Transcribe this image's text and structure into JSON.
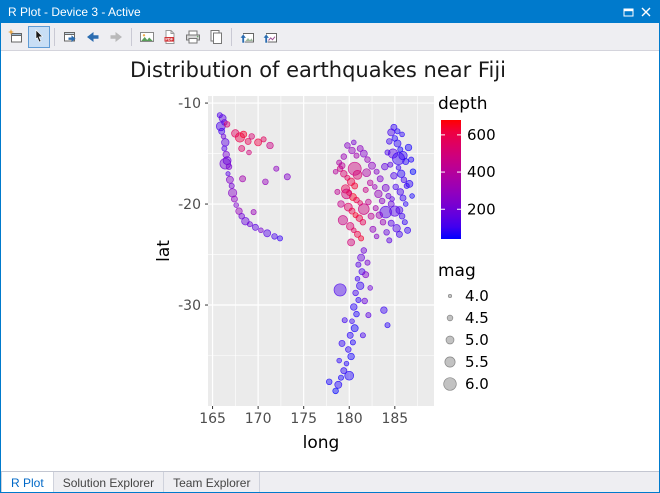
{
  "window": {
    "title": "R Plot - Device 3 - Active",
    "controls": [
      {
        "name": "window-position-icon"
      },
      {
        "name": "close-icon"
      }
    ]
  },
  "toolbar": {
    "buttons": [
      {
        "name": "new-plot-window-icon"
      },
      {
        "name": "pointer-tool-icon",
        "active": true
      },
      {
        "name": "export-plot-icon"
      },
      {
        "name": "history-previous-icon"
      },
      {
        "name": "history-next-icon",
        "disabled": true
      },
      {
        "name": "save-image-icon"
      },
      {
        "name": "save-pdf-icon"
      },
      {
        "name": "print-icon"
      },
      {
        "name": "copy-icon"
      },
      {
        "name": "copy-bitmap-icon"
      },
      {
        "name": "copy-metafile-icon"
      }
    ]
  },
  "tabs": [
    {
      "label": "R Plot",
      "active": true
    },
    {
      "label": "Solution Explorer",
      "active": false
    },
    {
      "label": "Team Explorer",
      "active": false
    }
  ],
  "chart_data": {
    "type": "scatter",
    "title": "Distribution of earthquakes near Fiji",
    "xlabel": "long",
    "ylabel": "lat",
    "x_ticks": [
      165,
      170,
      175,
      180,
      185
    ],
    "y_ticks": [
      -10,
      -20,
      -30
    ],
    "x_minor": [
      167.5,
      172.5,
      177.5,
      182.5,
      187.5
    ],
    "y_minor": [
      -15,
      -25,
      -35
    ],
    "xlim": [
      164.5,
      189.3
    ],
    "ylim": [
      -40.0,
      -9.3
    ],
    "panel_bg": "#EBEBEB",
    "grid_color": "#FFFFFF",
    "color_legend": {
      "title": "depth",
      "ticks": [
        600,
        400,
        200
      ],
      "domain": [
        40,
        680
      ],
      "low": "#0000FF",
      "high": "#FF0000"
    },
    "size_legend": {
      "title": "mag",
      "values": [
        4.0,
        4.5,
        5.0,
        5.5,
        6.0
      ],
      "labels": [
        "4.0",
        "4.5",
        "5.0",
        "5.5",
        "6.0"
      ]
    },
    "points": [
      [
        165.8,
        -11.2,
        130,
        4.4
      ],
      [
        166.1,
        -11.5,
        150,
        4.8
      ],
      [
        166.3,
        -11.9,
        180,
        4.5
      ],
      [
        165.9,
        -12.3,
        120,
        5.2
      ],
      [
        166.6,
        -12.1,
        520,
        4.5
      ],
      [
        166.0,
        -12.8,
        110,
        4.6
      ],
      [
        166.2,
        -13.3,
        200,
        4.3
      ],
      [
        166.4,
        -13.9,
        160,
        4.9
      ],
      [
        166.3,
        -14.5,
        140,
        4.4
      ],
      [
        166.5,
        -15.1,
        220,
        4.7
      ],
      [
        166.6,
        -15.7,
        190,
        5.0
      ],
      [
        166.4,
        -16.0,
        200,
        5.6
      ],
      [
        166.8,
        -16.3,
        230,
        4.5
      ],
      [
        166.7,
        -17.0,
        150,
        4.2
      ],
      [
        166.9,
        -17.6,
        250,
        4.8
      ],
      [
        167.1,
        -18.2,
        210,
        4.4
      ],
      [
        167.2,
        -18.9,
        260,
        5.1
      ],
      [
        167.4,
        -19.5,
        280,
        4.6
      ],
      [
        167.6,
        -20.1,
        240,
        4.3
      ],
      [
        167.9,
        -20.7,
        300,
        4.7
      ],
      [
        168.2,
        -21.2,
        200,
        4.5
      ],
      [
        168.6,
        -21.7,
        180,
        4.9
      ],
      [
        169.1,
        -22.0,
        190,
        4.4
      ],
      [
        169.7,
        -22.3,
        160,
        4.6
      ],
      [
        170.3,
        -22.6,
        220,
        4.3
      ],
      [
        171.0,
        -22.9,
        140,
        4.8
      ],
      [
        171.8,
        -23.2,
        120,
        4.5
      ],
      [
        172.4,
        -23.4,
        90,
        4.4
      ],
      [
        168.3,
        -17.5,
        340,
        4.6
      ],
      [
        169.5,
        -20.8,
        310,
        4.4
      ],
      [
        167.5,
        -13.0,
        560,
        4.9
      ],
      [
        168.0,
        -13.4,
        600,
        5.3
      ],
      [
        168.4,
        -13.1,
        640,
        4.7
      ],
      [
        168.9,
        -13.8,
        580,
        4.6
      ],
      [
        169.3,
        -13.3,
        520,
        4.5
      ],
      [
        170.0,
        -13.9,
        610,
        4.8
      ],
      [
        170.6,
        -13.6,
        560,
        4.4
      ],
      [
        168.2,
        -14.5,
        540,
        4.6
      ],
      [
        169.0,
        -14.9,
        500,
        4.3
      ],
      [
        171.3,
        -14.2,
        470,
        4.7
      ],
      [
        170.8,
        -17.8,
        300,
        4.5
      ],
      [
        172.0,
        -16.5,
        280,
        4.4
      ],
      [
        173.2,
        -17.3,
        250,
        4.6
      ],
      [
        179.0,
        -16.5,
        480,
        4.5
      ],
      [
        179.4,
        -17.0,
        520,
        4.7
      ],
      [
        179.8,
        -17.4,
        560,
        4.4
      ],
      [
        180.2,
        -17.8,
        600,
        4.9
      ],
      [
        180.6,
        -18.2,
        640,
        4.6
      ],
      [
        179.6,
        -18.5,
        580,
        5.1
      ],
      [
        180.0,
        -18.9,
        620,
        4.4
      ],
      [
        180.4,
        -19.3,
        660,
        4.8
      ],
      [
        180.8,
        -19.6,
        600,
        4.5
      ],
      [
        181.2,
        -19.9,
        560,
        4.3
      ],
      [
        179.9,
        -20.3,
        540,
        5.0
      ],
      [
        180.3,
        -20.7,
        600,
        4.6
      ],
      [
        180.7,
        -21.1,
        650,
        4.4
      ],
      [
        181.1,
        -21.4,
        610,
        4.7
      ],
      [
        181.5,
        -21.8,
        570,
        4.5
      ],
      [
        180.1,
        -22.2,
        520,
        4.9
      ],
      [
        180.5,
        -22.6,
        560,
        4.3
      ],
      [
        180.9,
        -23.0,
        600,
        4.6
      ],
      [
        181.3,
        -23.4,
        640,
        4.4
      ],
      [
        180.2,
        -23.8,
        500,
        4.8
      ],
      [
        179.7,
        -19.0,
        500,
        5.4
      ],
      [
        181.6,
        -20.5,
        480,
        5.6
      ],
      [
        180.9,
        -17.1,
        530,
        5.2
      ],
      [
        181.8,
        -18.6,
        460,
        4.4
      ],
      [
        182.1,
        -19.8,
        440,
        4.5
      ],
      [
        182.4,
        -21.2,
        420,
        4.6
      ],
      [
        179.3,
        -21.6,
        470,
        5.3
      ],
      [
        179.1,
        -20.0,
        450,
        4.7
      ],
      [
        178.7,
        -18.8,
        430,
        4.4
      ],
      [
        180.6,
        -16.5,
        480,
        6.1
      ],
      [
        182.0,
        -15.6,
        300,
        4.5
      ],
      [
        182.5,
        -16.2,
        280,
        4.8
      ],
      [
        183.0,
        -16.8,
        260,
        4.4
      ],
      [
        183.4,
        -17.5,
        240,
        4.6
      ],
      [
        182.8,
        -18.3,
        320,
        4.3
      ],
      [
        183.2,
        -19.0,
        300,
        4.9
      ],
      [
        183.6,
        -19.7,
        270,
        4.5
      ],
      [
        182.9,
        -20.4,
        350,
        4.4
      ],
      [
        183.3,
        -21.1,
        330,
        4.7
      ],
      [
        183.7,
        -21.8,
        310,
        4.5
      ],
      [
        182.6,
        -22.5,
        290,
        4.6
      ],
      [
        183.0,
        -23.2,
        260,
        4.3
      ],
      [
        184.0,
        -18.4,
        220,
        4.8
      ],
      [
        184.3,
        -19.2,
        200,
        4.4
      ],
      [
        184.6,
        -20.0,
        180,
        4.6
      ],
      [
        181.9,
        -16.9,
        380,
        5.0
      ],
      [
        182.3,
        -17.9,
        400,
        4.5
      ],
      [
        184.0,
        -20.8,
        140,
        5.8
      ],
      [
        185.0,
        -13.5,
        60,
        4.5
      ],
      [
        185.3,
        -14.0,
        70,
        4.8
      ],
      [
        185.6,
        -14.6,
        50,
        4.4
      ],
      [
        185.9,
        -15.2,
        80,
        5.1
      ],
      [
        186.2,
        -15.8,
        60,
        4.6
      ],
      [
        185.4,
        -16.4,
        90,
        4.3
      ],
      [
        185.7,
        -17.0,
        70,
        4.9
      ],
      [
        186.0,
        -17.6,
        100,
        4.5
      ],
      [
        186.3,
        -18.2,
        80,
        4.4
      ],
      [
        185.6,
        -18.8,
        110,
        4.7
      ],
      [
        185.9,
        -19.4,
        90,
        4.6
      ],
      [
        186.2,
        -20.0,
        70,
        4.3
      ],
      [
        185.5,
        -20.6,
        120,
        4.8
      ],
      [
        185.8,
        -21.2,
        100,
        4.5
      ],
      [
        186.1,
        -21.8,
        80,
        4.4
      ],
      [
        185.2,
        -22.4,
        130,
        4.9
      ],
      [
        185.5,
        -23.0,
        110,
        4.6
      ],
      [
        184.8,
        -15.0,
        140,
        5.3
      ],
      [
        184.5,
        -16.1,
        150,
        4.4
      ],
      [
        184.9,
        -17.2,
        130,
        4.7
      ],
      [
        185.1,
        -18.3,
        120,
        4.5
      ],
      [
        184.7,
        -19.5,
        160,
        4.3
      ],
      [
        185.0,
        -20.7,
        140,
        5.5
      ],
      [
        184.6,
        -21.9,
        150,
        4.6
      ],
      [
        186.5,
        -14.4,
        50,
        4.7
      ],
      [
        186.8,
        -15.6,
        60,
        4.4
      ],
      [
        187.0,
        -16.8,
        40,
        4.5
      ],
      [
        186.6,
        -18.0,
        70,
        4.8
      ],
      [
        186.9,
        -19.2,
        50,
        4.3
      ],
      [
        186.4,
        -22.6,
        90,
        4.6
      ],
      [
        184.4,
        -13.8,
        100,
        4.5
      ],
      [
        184.2,
        -14.9,
        120,
        4.4
      ],
      [
        183.9,
        -16.3,
        170,
        4.7
      ],
      [
        184.1,
        -22.8,
        180,
        4.5
      ],
      [
        184.4,
        -23.6,
        160,
        4.4
      ],
      [
        185.4,
        -15.5,
        90,
        5.9
      ],
      [
        184.9,
        -12.4,
        80,
        4.6
      ],
      [
        185.3,
        -12.8,
        60,
        4.4
      ],
      [
        184.6,
        -12.9,
        110,
        4.8
      ],
      [
        185.8,
        -13.1,
        70,
        4.3
      ],
      [
        181.6,
        -24.6,
        200,
        4.5
      ],
      [
        181.3,
        -25.3,
        180,
        4.8
      ],
      [
        181.0,
        -26.0,
        150,
        4.4
      ],
      [
        181.4,
        -26.7,
        120,
        4.6
      ],
      [
        180.9,
        -27.4,
        100,
        4.3
      ],
      [
        181.2,
        -28.1,
        90,
        4.9
      ],
      [
        180.7,
        -28.8,
        110,
        4.5
      ],
      [
        181.0,
        -29.5,
        80,
        4.4
      ],
      [
        180.5,
        -30.2,
        70,
        4.7
      ],
      [
        180.8,
        -30.9,
        60,
        4.5
      ],
      [
        180.3,
        -31.6,
        90,
        4.3
      ],
      [
        180.6,
        -32.3,
        50,
        4.8
      ],
      [
        180.1,
        -33.0,
        70,
        4.6
      ],
      [
        180.4,
        -33.7,
        60,
        4.4
      ],
      [
        179.9,
        -34.4,
        80,
        4.5
      ],
      [
        180.2,
        -35.1,
        50,
        4.7
      ],
      [
        179.7,
        -35.8,
        60,
        4.3
      ],
      [
        179.4,
        -36.5,
        70,
        4.6
      ],
      [
        179.1,
        -37.2,
        50,
        4.4
      ],
      [
        178.8,
        -37.9,
        60,
        4.8
      ],
      [
        178.5,
        -38.5,
        40,
        4.5
      ],
      [
        182.0,
        -25.8,
        220,
        4.4
      ],
      [
        181.8,
        -27.0,
        240,
        4.6
      ],
      [
        182.3,
        -28.3,
        200,
        4.3
      ],
      [
        181.7,
        -29.6,
        180,
        4.5
      ],
      [
        182.1,
        -31.0,
        160,
        4.4
      ],
      [
        183.8,
        -30.5,
        90,
        4.7
      ],
      [
        184.2,
        -32.0,
        70,
        4.4
      ],
      [
        179.0,
        -28.5,
        120,
        5.9
      ],
      [
        179.5,
        -31.5,
        100,
        4.4
      ],
      [
        179.2,
        -33.8,
        80,
        4.6
      ],
      [
        178.9,
        -35.5,
        70,
        4.3
      ],
      [
        177.8,
        -37.6,
        50,
        4.5
      ],
      [
        180.0,
        -37.0,
        60,
        5.2
      ],
      [
        181.5,
        -33.0,
        110,
        4.4
      ],
      [
        179.8,
        -14.2,
        260,
        4.5
      ],
      [
        180.3,
        -14.7,
        300,
        4.7
      ],
      [
        180.8,
        -15.2,
        340,
        4.4
      ],
      [
        181.2,
        -14.5,
        280,
        4.6
      ],
      [
        180.5,
        -13.9,
        220,
        4.3
      ],
      [
        181.6,
        -15.0,
        250,
        4.8
      ],
      [
        179.4,
        -15.3,
        320,
        4.5
      ],
      [
        178.9,
        -15.9,
        380,
        4.4
      ],
      [
        179.2,
        -16.2,
        420,
        4.6
      ],
      [
        178.5,
        -16.8,
        400,
        4.3
      ]
    ]
  }
}
